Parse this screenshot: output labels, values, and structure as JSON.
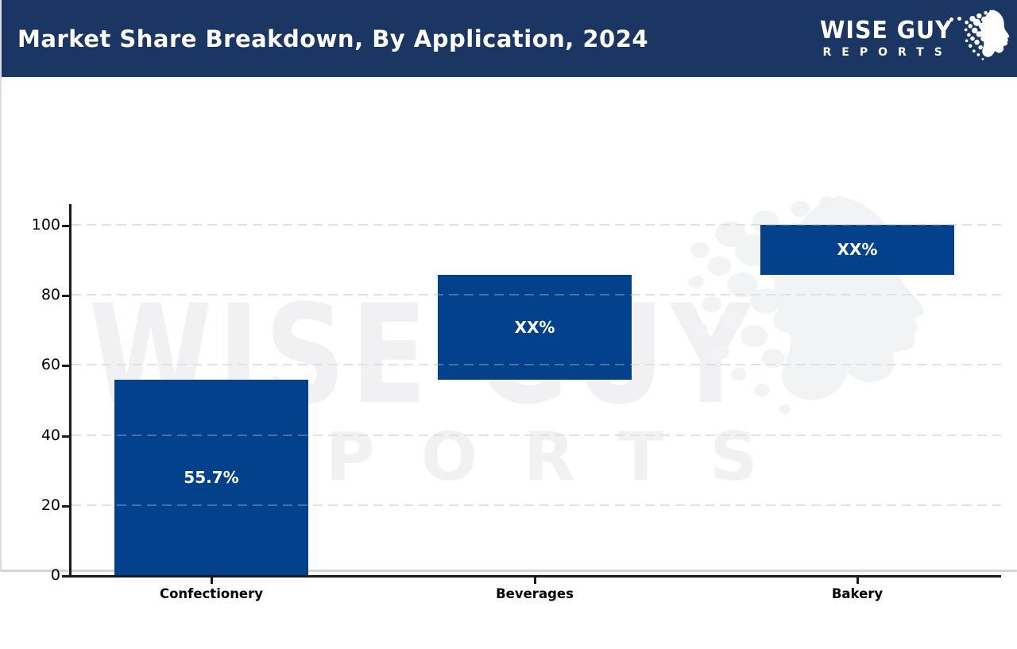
{
  "header": {
    "title": "Market Share Breakdown, By Application, 2024",
    "logo": {
      "line1": "WISE GUY",
      "line2": "REPORTS"
    }
  },
  "watermark": {
    "line1": "WISE GUY",
    "line2": "REPORTS"
  },
  "colors": {
    "header_bg": "#1C3664",
    "bar_fill": "#04418C",
    "bar_label_text": "#FFFFFF",
    "grid_line": "#D9D9D9",
    "grid_line_over_bar": "rgba(255,255,255,0.25)",
    "axis_line": "#1A1A1A",
    "tick_text": "#000000",
    "title_text": "#FFFFFF",
    "watermark_text": "#F1F1F3"
  },
  "chart_data": {
    "type": "bar",
    "subtype": "floating-stacked-percentage-waterfall",
    "title": "Market Share Breakdown, By Application, 2024",
    "categories": [
      "Confectionery",
      "Beverages",
      "Bakery"
    ],
    "segments": [
      {
        "category": "Confectionery",
        "start": 0,
        "end": 55.7,
        "label": "55.7%"
      },
      {
        "category": "Beverages",
        "start": 55.7,
        "end": 85.8,
        "label": "XX%"
      },
      {
        "category": "Bakery",
        "start": 85.8,
        "end": 100,
        "label": "XX%"
      }
    ],
    "xlabel": "",
    "ylabel": "",
    "ylim": [
      0,
      100
    ],
    "yticks": [
      0,
      20,
      40,
      60,
      80,
      100
    ],
    "grid": "horizontal-dashed",
    "legend": "none"
  }
}
